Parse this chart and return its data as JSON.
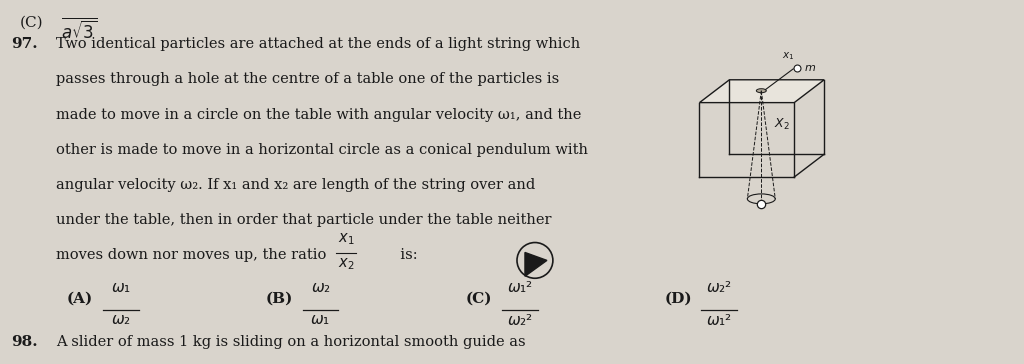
{
  "question_number": "97.",
  "question_text_lines": [
    "Two identical particles are attached at the ends of a light string which",
    "passes through a hole at the centre of a table one of the particles is",
    "made to move in a circle on the table with angular velocity ω₁, and the",
    "other is made to move in a horizontal circle as a conical pendulum with",
    "angular velocity ω₂. If x₁ and x₂ are length of the string over and",
    "under the table, then in order that particle under the table neither",
    "moves down nor moves up, the ratio                is:"
  ],
  "ratio_numerator": "x₁",
  "ratio_denominator": "x₂",
  "options": [
    {
      "label": "(A)",
      "num": "ω₁",
      "den": "ω₂"
    },
    {
      "label": "(B)",
      "num": "ω₂",
      "den": "ω₁"
    },
    {
      "label": "(C)",
      "num": "ω₁²",
      "den": "ω₂²"
    },
    {
      "label": "(D)",
      "num": "ω₂²",
      "den": "ω₁²"
    }
  ],
  "prev_line_top": "(C)       a√3",
  "next_line_bottom": "98.    A slider of mass 1 kg is sliding on a horizontal smooth guide as",
  "bg_color": "#d9d4cc",
  "text_color": "#1a1a1a",
  "font_size_main": 11,
  "font_size_options": 11
}
